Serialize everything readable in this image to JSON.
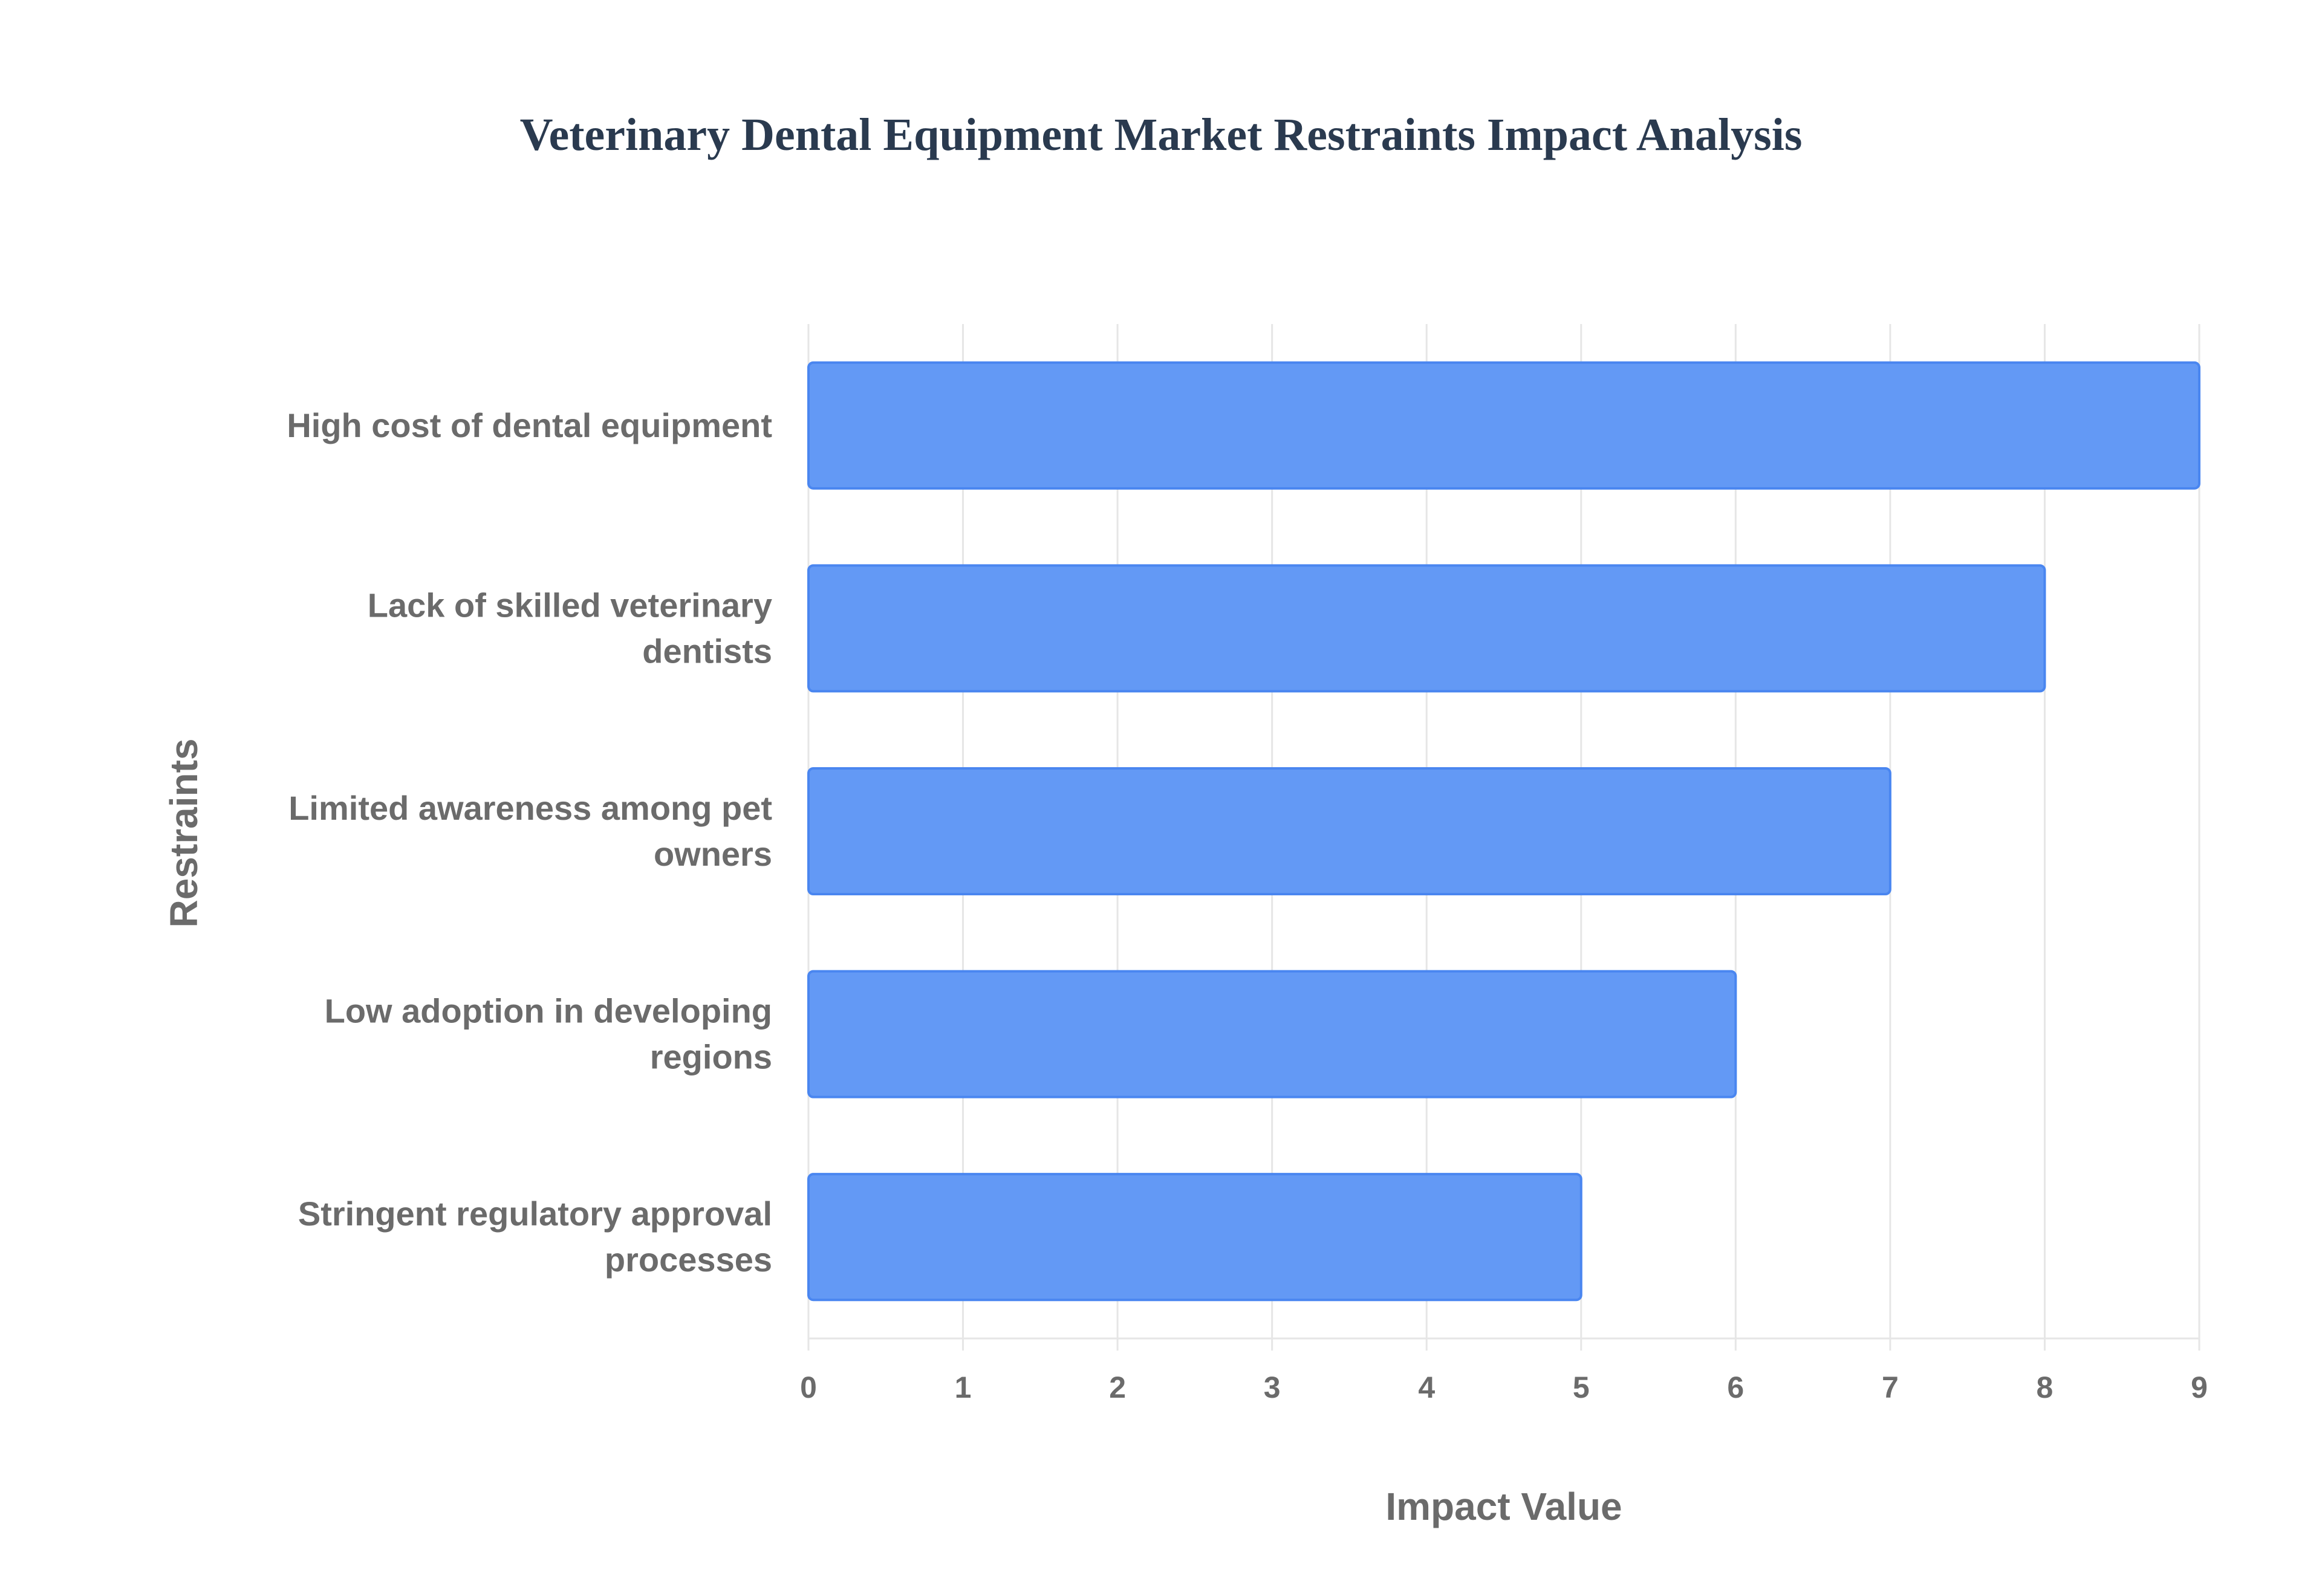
{
  "chart_data": {
    "type": "bar",
    "orientation": "horizontal",
    "title": "Veterinary Dental Equipment Market Restraints Impact Analysis",
    "xlabel": "Impact Value",
    "ylabel": "Restraints",
    "categories": [
      [
        "High cost of dental equipment"
      ],
      [
        "Lack of skilled veterinary",
        "dentists"
      ],
      [
        "Limited awareness among pet",
        "owners"
      ],
      [
        "Low adoption in developing",
        "regions"
      ],
      [
        "Stringent regulatory approval",
        "processes"
      ]
    ],
    "values": [
      9,
      8,
      7,
      6,
      5
    ],
    "xlim": [
      0,
      9
    ],
    "xticks": [
      "0",
      "1",
      "2",
      "3",
      "4",
      "5",
      "6",
      "7",
      "8",
      "9"
    ],
    "grid": true,
    "legend": "none",
    "colors": {
      "bar_fill": "#6399f5",
      "bar_border": "#4a86f0",
      "grid": "#e6e6e6",
      "text": "#6b6b6b",
      "title": "#2a3a4f"
    }
  }
}
